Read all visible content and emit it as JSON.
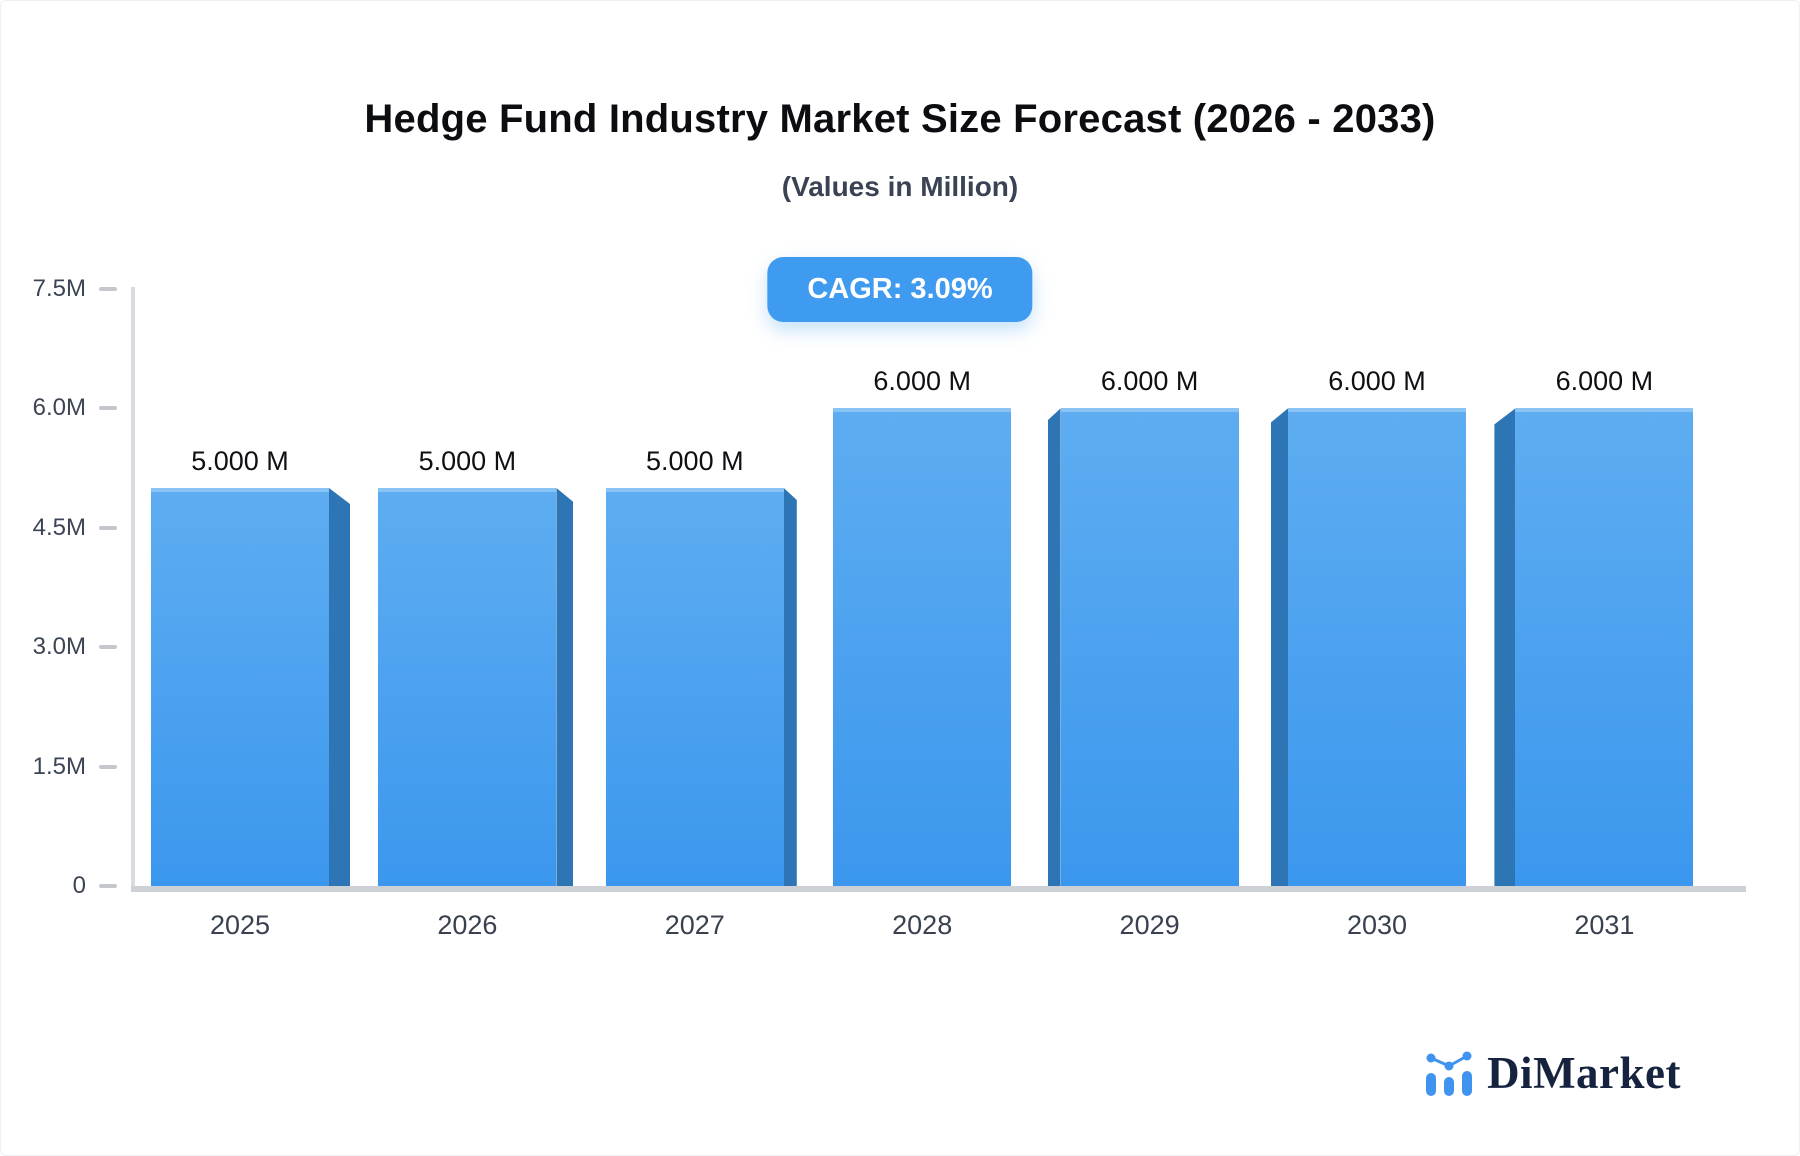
{
  "header": {
    "title": "Hedge Fund Industry Market Size Forecast (2026 - 2033)",
    "subtitle": "(Values in Million)"
  },
  "badge": {
    "label": "CAGR: 3.09%",
    "background": "#3F9BF0",
    "text_color": "#FFFFFF"
  },
  "chart_data": {
    "type": "bar",
    "title": "Hedge Fund Industry Market Size Forecast (2026 - 2033)",
    "subtitle": "(Values in Million)",
    "annotation": "CAGR: 3.09%",
    "unit": "Million",
    "categories": [
      "2025",
      "2026",
      "2027",
      "2028",
      "2029",
      "2030",
      "2031"
    ],
    "values": [
      5.0,
      5.0,
      5.0,
      6.0,
      6.0,
      6.0,
      6.0
    ],
    "bar_labels": [
      "5.000 M",
      "5.000 M",
      "5.000 M",
      "6.000 M",
      "6.000 M",
      "6.000 M",
      "6.000 M"
    ],
    "xlabel": "",
    "ylabel": "",
    "ylim": [
      0,
      7.5
    ],
    "yticks": [
      {
        "value": 7.5,
        "label": "7.5M"
      },
      {
        "value": 6.0,
        "label": "6.0M"
      },
      {
        "value": 4.5,
        "label": "4.5M"
      },
      {
        "value": 3.0,
        "label": "3.0M"
      },
      {
        "value": 1.5,
        "label": "1.5M"
      },
      {
        "value": 0,
        "label": "0"
      }
    ],
    "grid": false,
    "legend": false,
    "style_3d": true,
    "bar_face_top_color": "#5EADF1",
    "bar_face_bottom_color": "#3B97EE",
    "bar_side_color": "#2D75B4",
    "axis_color": "#CDD1D6",
    "tick_label_color": "#3C4554"
  },
  "logo": {
    "icon": "bar-line-chart-icon",
    "text": "DiMarket",
    "text_color": "#16233F",
    "icon_color": "#4094EF"
  }
}
